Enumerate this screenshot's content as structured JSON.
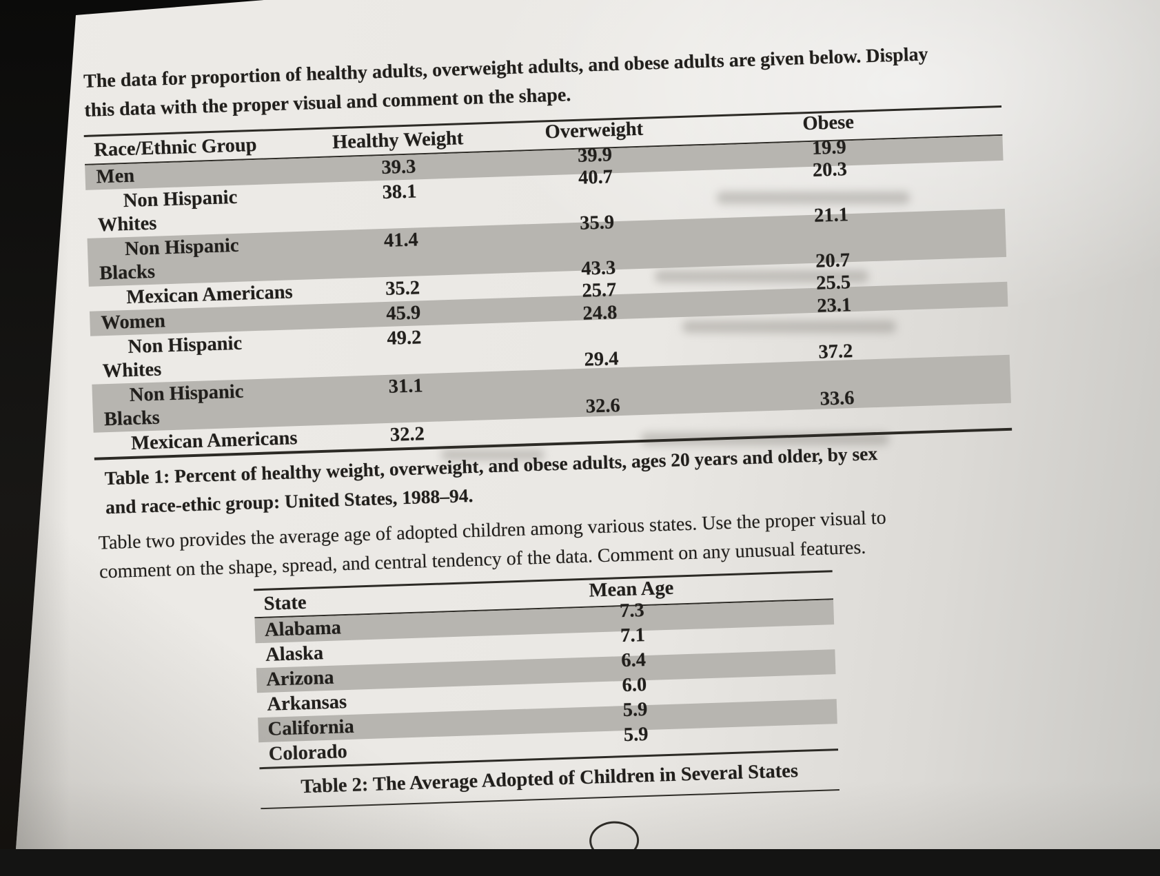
{
  "doc": {
    "intro": "The data for proportion of healthy adults, overweight adults, and obese adults are given below. Display\nthis data with the proper visual and comment on the shape.",
    "table1": {
      "headers": [
        "Race/Ethnic Group",
        "Healthy Weight",
        "Overweight",
        "Obese"
      ],
      "rows": [
        [
          "Men",
          "39.3",
          "39.9",
          "19.9"
        ],
        [
          "Non Hispanic\nWhites",
          "38.1",
          "40.7",
          "20.3"
        ],
        [
          "Non Hispanic\nBlacks",
          "41.4",
          "35.9",
          "21.1"
        ],
        [
          "Mexican Americans",
          "35.2",
          "43.3",
          "20.7"
        ],
        [
          "Women",
          "45.9",
          "25.7",
          "25.5"
        ],
        [
          "Non Hispanic\nWhites",
          "49.2",
          "24.8",
          "23.1"
        ],
        [
          "Non Hispanic\nBlacks",
          "31.1",
          "29.4",
          "37.2"
        ],
        [
          "Mexican Americans",
          "32.2",
          "32.6",
          "33.6"
        ]
      ],
      "caption": "Table 1: Percent of healthy weight, overweight, and obese adults, ages 20 years and older, by sex\nand race-ethic group: United States, 1988–94."
    },
    "middle": "Table two provides the average age of adopted children among various states. Use the proper visual to\ncomment on the shape, spread, and central tendency of the data. Comment on any unusual features.",
    "table2": {
      "headers": [
        "State",
        "Mean Age"
      ],
      "rows": [
        [
          "Alabama",
          "7.3"
        ],
        [
          "Alaska",
          "7.1"
        ],
        [
          "Arizona",
          "6.4"
        ],
        [
          "Arkansas",
          "6.0"
        ],
        [
          "California",
          "5.9"
        ],
        [
          "Colorado",
          "5.9"
        ]
      ],
      "caption": "Table 2: The Average Adopted of Children in Several States"
    },
    "colors": {
      "row_shade": "#b7b5b0",
      "paper": "#e9e7e3",
      "ink": "#211f1c"
    }
  }
}
